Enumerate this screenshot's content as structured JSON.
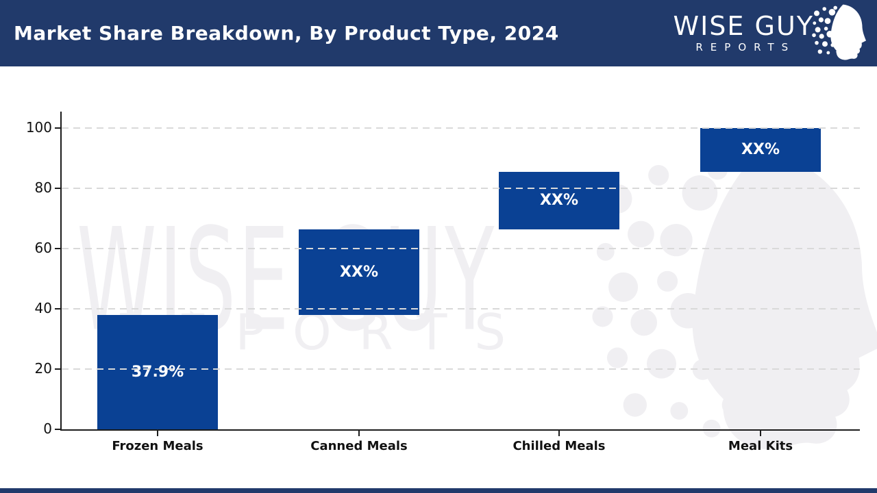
{
  "header": {
    "title": "Market Share Breakdown, By Product Type, 2024",
    "logo_line1": "WISE GUY",
    "logo_line2": "REPORTS"
  },
  "watermark": {
    "line1": "WISE GUY",
    "line2": "REPORTS"
  },
  "colors": {
    "header_bg": "#213a6b",
    "footer_bg": "#213a6b",
    "bar": "#0a4194",
    "gridline": "#d9d9d9",
    "watermark": "#f0eff2",
    "bar_label": "#ffffff"
  },
  "chart_data": {
    "type": "bar",
    "subtype": "waterfall",
    "title": "Market Share Breakdown, By Product Type, 2024",
    "categories": [
      "Frozen Meals",
      "Canned Meals",
      "Chilled Meals",
      "Meal Kits"
    ],
    "segments": [
      {
        "category": "Frozen Meals",
        "start": 0,
        "end": 37.9,
        "label": "37.9%"
      },
      {
        "category": "Canned Meals",
        "start": 37.9,
        "end": 66.4,
        "label": "XX%"
      },
      {
        "category": "Chilled Meals",
        "start": 66.4,
        "end": 85.5,
        "label": "XX%"
      },
      {
        "category": "Meal Kits",
        "start": 85.5,
        "end": 100,
        "label": "XX%"
      }
    ],
    "yticks": [
      0,
      20,
      40,
      60,
      80,
      100
    ],
    "ylim": [
      0,
      105
    ],
    "xlabel": "",
    "ylabel": "",
    "grid": "horizontal-dashed",
    "legend": "none",
    "bar_color": "#0a4194"
  }
}
